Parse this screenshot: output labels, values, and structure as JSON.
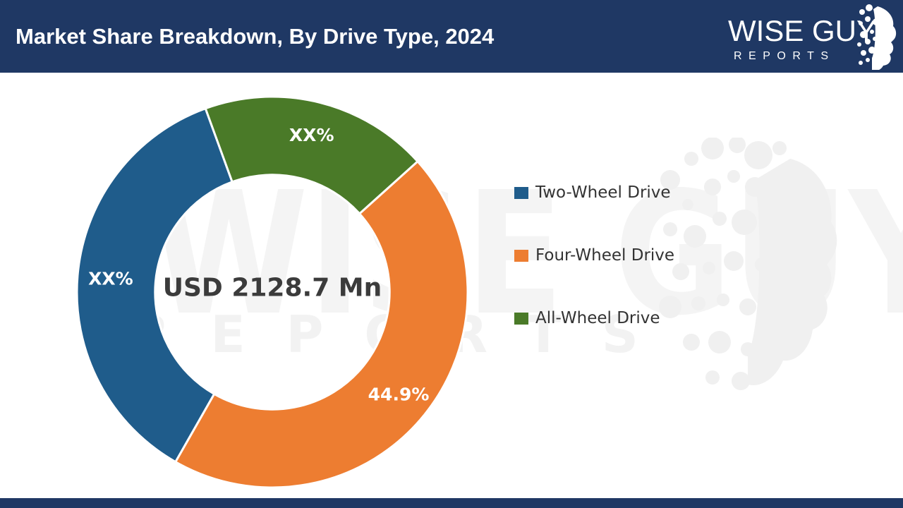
{
  "header": {
    "title": "Market Share Breakdown, By Drive Type, 2024",
    "logo": {
      "line1": "WISE GUY",
      "line2": "REPORTS"
    }
  },
  "watermark": {
    "line1": "WISE GUY",
    "line2": "REPORTS"
  },
  "chart_data": {
    "type": "pie",
    "subtype": "donut",
    "title": "Market Share Breakdown, By Drive Type, 2024",
    "center_label": "USD 2128.7 Mn",
    "inner_radius_ratio": 0.6,
    "start_angle_deg": 110,
    "direction": "counterclockwise",
    "legend_position": "right",
    "slices": [
      {
        "name": "Two-Wheel Drive",
        "label": "XX%",
        "value": 36.2,
        "color": "#1f5c8b",
        "note": "value estimated from arc angle, label masked as XX% in image"
      },
      {
        "name": "Four-Wheel Drive",
        "label": "44.9%",
        "value": 44.9,
        "color": "#ed7d31"
      },
      {
        "name": "All-Wheel Drive",
        "label": "XX%",
        "value": 18.9,
        "color": "#4a7a28",
        "note": "value estimated from arc angle, label masked as XX% in image"
      }
    ]
  },
  "colors": {
    "header_bg": "#1f3864",
    "footer_bg": "#1f3864",
    "title_text": "#ffffff",
    "center_text": "#3b3b3b",
    "legend_text": "#333333",
    "slice_label_text": "#ffffff",
    "watermark": "#f2f2f2"
  }
}
